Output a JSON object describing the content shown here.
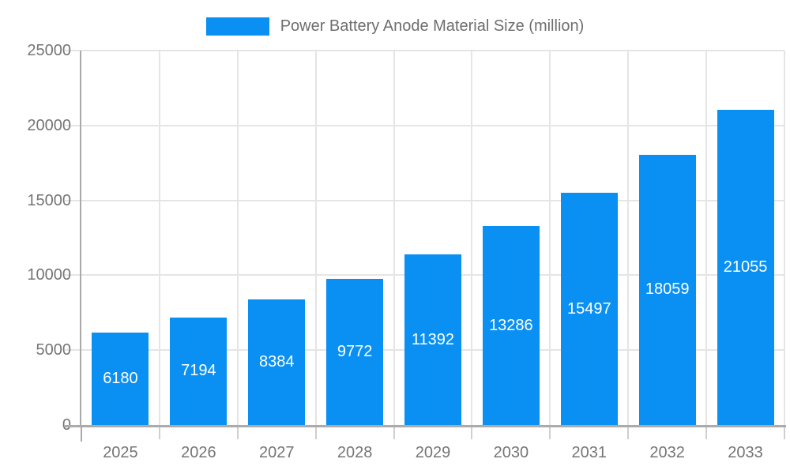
{
  "chart_data": {
    "type": "bar",
    "title": "Power Battery Anode Material Size (million)",
    "categories": [
      "2025",
      "2026",
      "2027",
      "2028",
      "2029",
      "2030",
      "2031",
      "2032",
      "2033"
    ],
    "series": [
      {
        "name": "Power Battery Anode Material Size (million)",
        "values": [
          6180,
          7194,
          8384,
          9772,
          11392,
          13286,
          15497,
          18059,
          21055
        ]
      }
    ],
    "xlabel": "",
    "ylabel": "",
    "ylim": [
      0,
      25000
    ],
    "yticks": [
      0,
      5000,
      10000,
      15000,
      20000,
      25000
    ],
    "grid": true,
    "legend_position": "top-center",
    "bar_labels_inside": true
  },
  "colors": {
    "bar": "#0a90f2",
    "bar_label": "#ffffff",
    "legend_text": "#6e6e6e",
    "tick_label": "#757575",
    "axis_line": "#a9a9a9",
    "baseline": "#ababab",
    "gridline": "#e5e5e5",
    "tick_minor": "#cfcfcf",
    "background": "#ffffff"
  }
}
